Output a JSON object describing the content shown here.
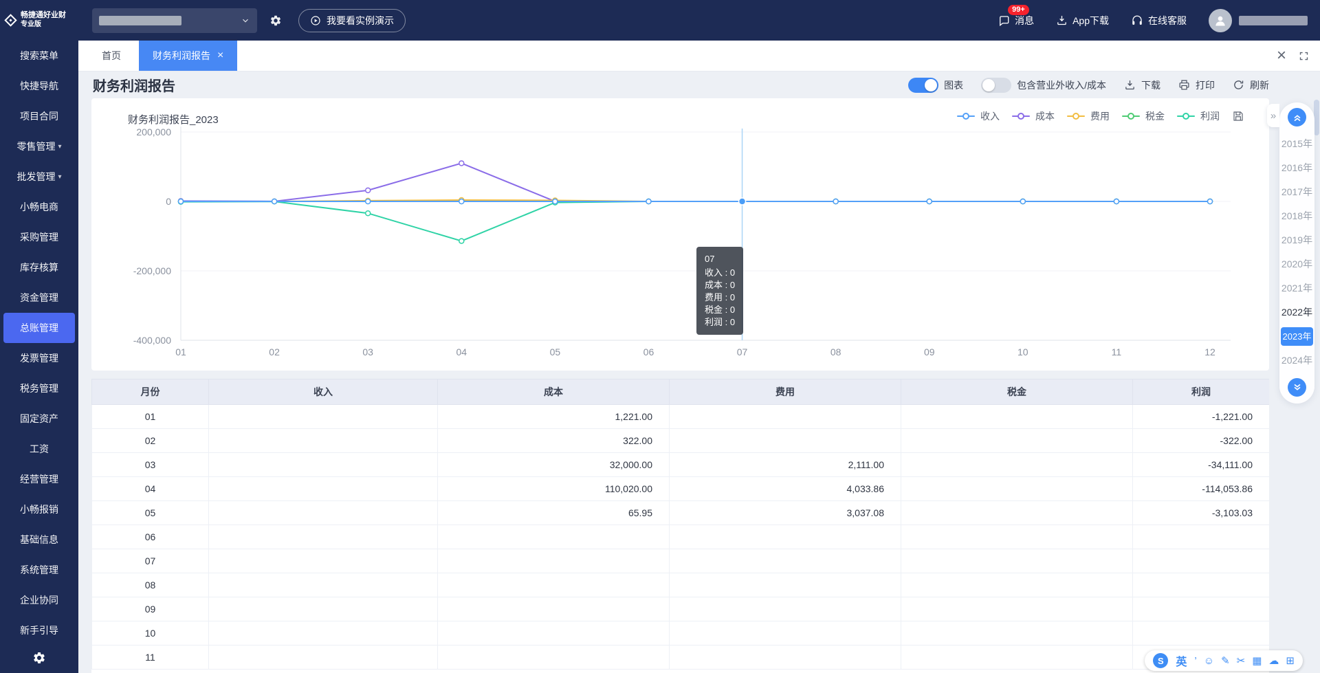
{
  "brand": {
    "name": "畅捷通好业财",
    "edition": "专业版"
  },
  "topbar": {
    "demo_label": "我要看实例演示",
    "messages": {
      "label": "消息",
      "badge": "99+"
    },
    "app_download_label": "App下载",
    "support_label": "在线客服"
  },
  "sidebar": {
    "items": [
      {
        "label": "搜索菜单"
      },
      {
        "label": "快捷导航"
      },
      {
        "label": "项目合同"
      },
      {
        "label": "零售管理",
        "arrow": true
      },
      {
        "label": "批发管理",
        "arrow": true
      },
      {
        "label": "小畅电商"
      },
      {
        "label": "采购管理"
      },
      {
        "label": "库存核算"
      },
      {
        "label": "资金管理"
      },
      {
        "label": "总账管理",
        "active": true
      },
      {
        "label": "发票管理"
      },
      {
        "label": "税务管理"
      },
      {
        "label": "固定资产"
      },
      {
        "label": "工资"
      },
      {
        "label": "经营管理"
      },
      {
        "label": "小畅报销"
      },
      {
        "label": "基础信息"
      },
      {
        "label": "系统管理"
      },
      {
        "label": "企业协同"
      },
      {
        "label": "新手引导"
      }
    ]
  },
  "tabbar": {
    "tabs": [
      {
        "label": "首页",
        "active": false,
        "closable": false
      },
      {
        "label": "财务利润报告",
        "active": true,
        "closable": true
      }
    ]
  },
  "page_header": {
    "title": "财务利润报告",
    "chart_toggle": {
      "label": "图表",
      "on": true
    },
    "nonoperating_toggle": {
      "label": "包含营业外收入/成本",
      "on": false
    },
    "download_label": "下载",
    "print_label": "打印",
    "refresh_label": "刷新"
  },
  "chart_data": {
    "type": "line",
    "title": "财务利润报告_2023",
    "categories": [
      "01",
      "02",
      "03",
      "04",
      "05",
      "06",
      "07",
      "08",
      "09",
      "10",
      "11",
      "12"
    ],
    "y_ticks": [
      {
        "label": "200,000",
        "value": 200000
      },
      {
        "label": "0",
        "value": 0
      },
      {
        "label": "-200,000",
        "value": -200000
      },
      {
        "label": "-400,000",
        "value": -400000
      }
    ],
    "ylim": [
      -400000,
      200000
    ],
    "grid": true,
    "legend_position": "top-right",
    "series": [
      {
        "name": "收入",
        "color": "#54a0f8",
        "values": [
          0,
          0,
          0,
          0,
          0,
          0,
          0,
          0,
          0,
          0,
          0,
          0
        ]
      },
      {
        "name": "成本",
        "color": "#8a6ce8",
        "values": [
          1221,
          322,
          32000,
          110020,
          65.95,
          0,
          0,
          0,
          0,
          0,
          0,
          0
        ]
      },
      {
        "name": "费用",
        "color": "#f2bd42",
        "values": [
          0,
          0,
          2111,
          4033.86,
          3037.08,
          0,
          0,
          0,
          0,
          0,
          0,
          0
        ]
      },
      {
        "name": "税金",
        "color": "#4ecb73",
        "values": [
          0,
          0,
          0,
          0,
          0,
          0,
          0,
          0,
          0,
          0,
          0,
          0
        ]
      },
      {
        "name": "利润",
        "color": "#2fd3a6",
        "values": [
          -1221,
          -322,
          -34111,
          -114053.86,
          -3103.03,
          0,
          0,
          0,
          0,
          0,
          0,
          0
        ]
      }
    ],
    "tooltip": {
      "x_index": 6,
      "title": "07",
      "lines": [
        "收入 : 0",
        "成本 : 0",
        "费用 : 0",
        "税金 : 0",
        "利润 : 0"
      ]
    }
  },
  "table": {
    "headers": [
      "月份",
      "收入",
      "成本",
      "费用",
      "税金",
      "利润"
    ],
    "rows": [
      [
        "01",
        "",
        "1,221.00",
        "",
        "",
        "-1,221.00"
      ],
      [
        "02",
        "",
        "322.00",
        "",
        "",
        "-322.00"
      ],
      [
        "03",
        "",
        "32,000.00",
        "2,111.00",
        "",
        "-34,111.00"
      ],
      [
        "04",
        "",
        "110,020.00",
        "4,033.86",
        "",
        "-114,053.86"
      ],
      [
        "05",
        "",
        "65.95",
        "3,037.08",
        "",
        "-3,103.03"
      ],
      [
        "06",
        "",
        "",
        "",
        "",
        ""
      ],
      [
        "07",
        "",
        "",
        "",
        "",
        ""
      ],
      [
        "08",
        "",
        "",
        "",
        "",
        ""
      ],
      [
        "09",
        "",
        "",
        "",
        "",
        ""
      ],
      [
        "10",
        "",
        "",
        "",
        "",
        ""
      ],
      [
        "11",
        "",
        "",
        "",
        "",
        ""
      ]
    ]
  },
  "year_panel": {
    "years": [
      "2015年",
      "2016年",
      "2017年",
      "2018年",
      "2019年",
      "2020年",
      "2021年",
      "2022年",
      "2023年",
      "2024年"
    ],
    "selected": "2023年",
    "emphasized": "2022年"
  },
  "ime": {
    "logo": "S",
    "mode_label": "英",
    "tools": [
      {
        "name": "ime-tone-icon",
        "glyph": "’"
      },
      {
        "name": "ime-emoji-icon",
        "glyph": "☺"
      },
      {
        "name": "ime-handwriting-icon",
        "glyph": "✎"
      },
      {
        "name": "ime-screenshot-icon",
        "glyph": "✂"
      },
      {
        "name": "ime-keyboard-icon",
        "glyph": "▦"
      },
      {
        "name": "ime-cloud-icon",
        "glyph": "☁"
      },
      {
        "name": "ime-toolbox-icon",
        "glyph": "⊞"
      }
    ]
  }
}
